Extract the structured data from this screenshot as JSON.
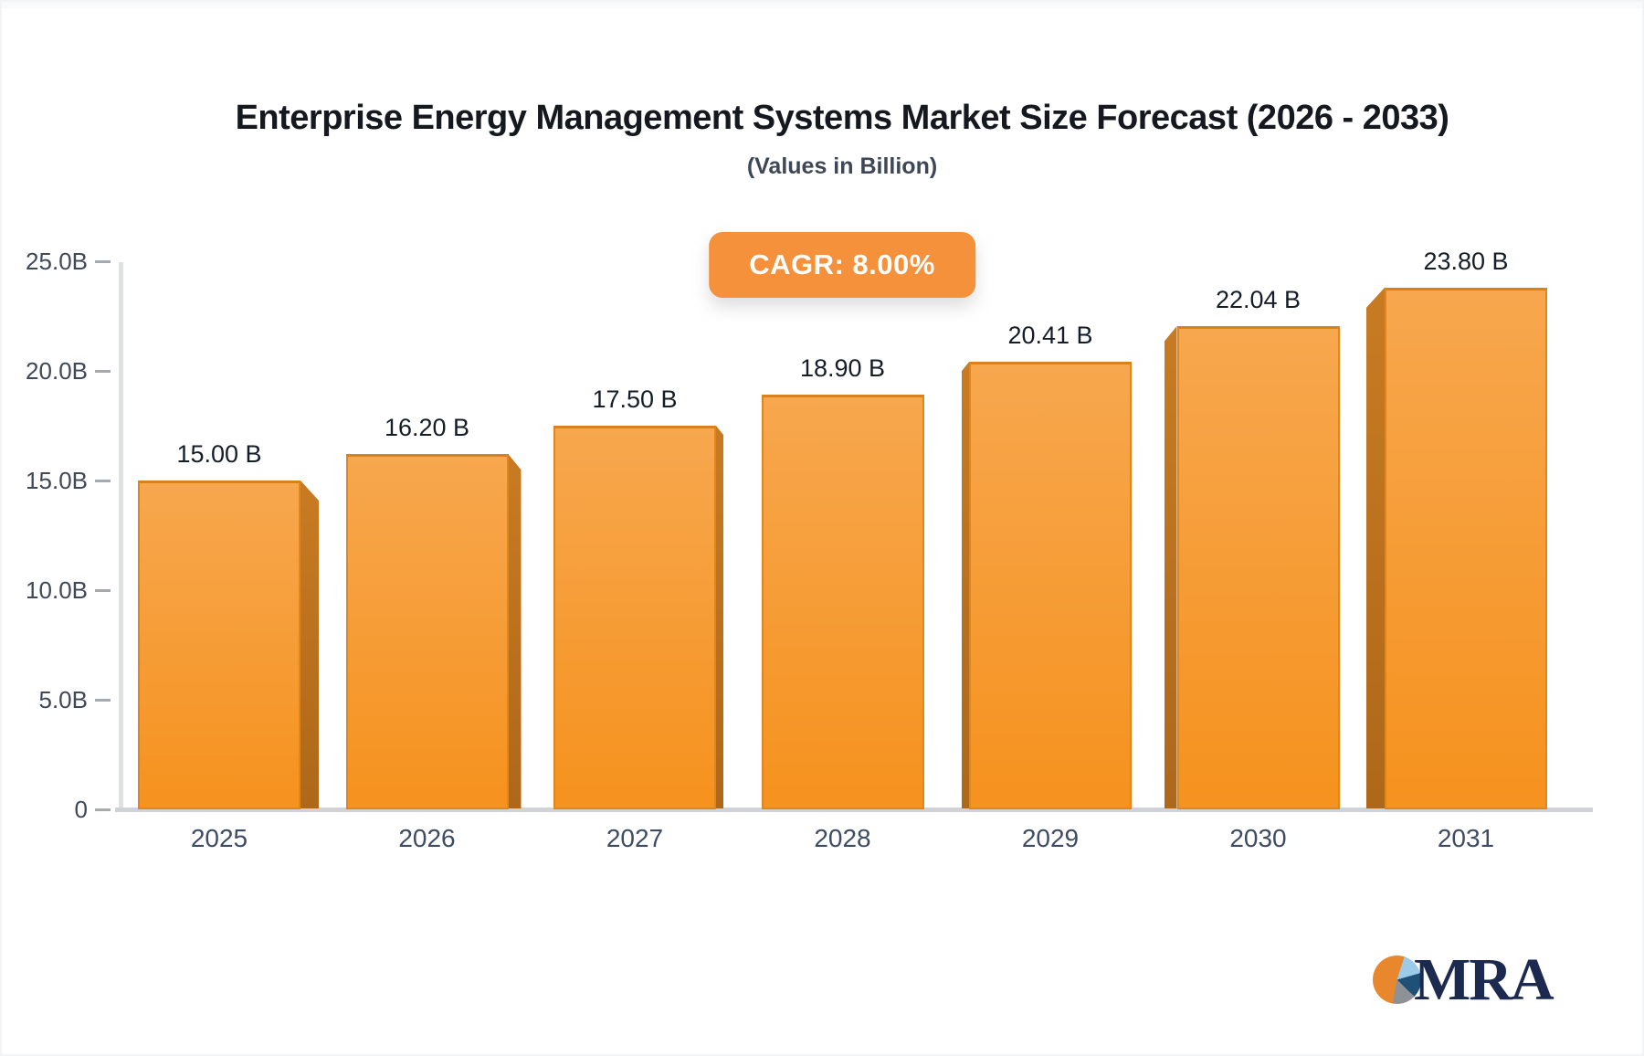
{
  "title": "Enterprise Energy Management Systems Market Size Forecast (2026 - 2033)",
  "subtitle": "(Values in Billion)",
  "badge": {
    "label": "CAGR: 8.00%"
  },
  "logo": {
    "text": "MRA",
    "pie_icon": "pie-chart-icon"
  },
  "colors": {
    "badge_bg": "#F5913A",
    "bar_top": "#F7A74E",
    "bar_bottom": "#F6921E",
    "bar_side": "#B96F1D",
    "axis_line": "#CFD2D7",
    "tick_text": "#3E4856",
    "logo_navy": "#1C2A4F"
  },
  "chart_data": {
    "type": "bar",
    "title": "Enterprise Energy Management Systems Market Size Forecast (2026 - 2033)",
    "subtitle": "(Values in Billion)",
    "annotation": "CAGR: 8.00%",
    "categories": [
      "2025",
      "2026",
      "2027",
      "2028",
      "2029",
      "2030",
      "2031"
    ],
    "values": [
      15.0,
      16.2,
      17.5,
      18.9,
      20.41,
      22.04,
      23.8
    ],
    "value_labels": [
      "15.00 B",
      "16.20 B",
      "17.50 B",
      "18.90 B",
      "20.41 B",
      "22.04 B",
      "23.80 B"
    ],
    "xlabel": "",
    "ylabel": "",
    "ylim": [
      0,
      25
    ],
    "grid": false,
    "legend": false,
    "y_ticks": [
      {
        "label": "0",
        "value": 0
      },
      {
        "label": "5.0B",
        "value": 5
      },
      {
        "label": "10.0B",
        "value": 10
      },
      {
        "label": "15.0B",
        "value": 15
      },
      {
        "label": "20.0B",
        "value": 20
      },
      {
        "label": "25.0B",
        "value": 25
      }
    ]
  }
}
